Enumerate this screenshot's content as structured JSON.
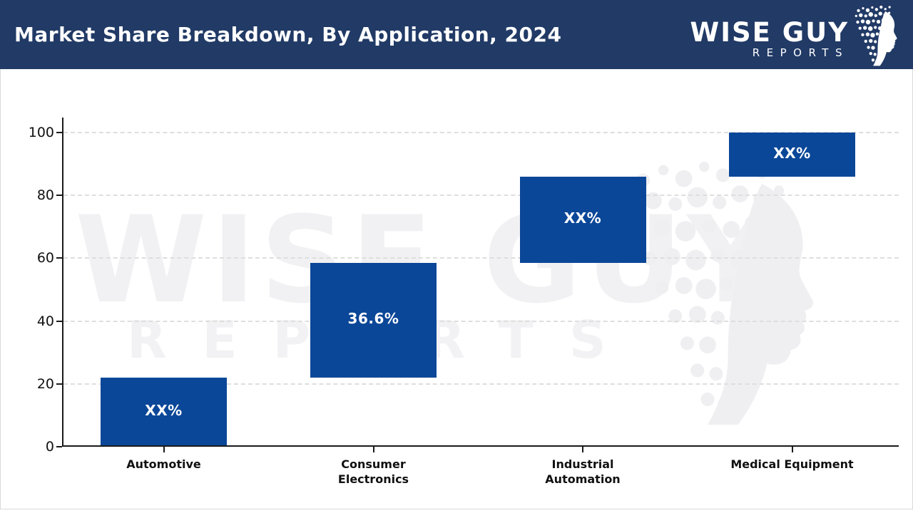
{
  "header": {
    "title": "Market Share Breakdown, By Application, 2024",
    "background_color": "#213A66",
    "logo": {
      "line1": "WISE GUY",
      "line2": "REPORTS"
    }
  },
  "watermark": {
    "line1": "WISE GUY",
    "line2": "REPORTS"
  },
  "chart_data": {
    "type": "bar",
    "subtype": "floating-waterfall",
    "title": "Market Share Breakdown, By Application, 2024",
    "categories": [
      "Automotive",
      "Consumer Electronics",
      "Industrial Automation",
      "Medical Equipment"
    ],
    "series": [
      {
        "name": "Market share (%)",
        "segments": [
          {
            "category": "Automotive",
            "start": 0,
            "end": 22,
            "label": "XX%"
          },
          {
            "category": "Consumer Electronics",
            "start": 22,
            "end": 58.6,
            "label": "36.6%"
          },
          {
            "category": "Industrial Automation",
            "start": 58.6,
            "end": 86,
            "label": "XX%"
          },
          {
            "category": "Medical Equipment",
            "start": 86,
            "end": 100,
            "label": "XX%"
          }
        ]
      }
    ],
    "xlabel": "",
    "ylabel": "",
    "ylim": [
      0,
      100
    ],
    "yticks": [
      0,
      20,
      40,
      60,
      80,
      100
    ],
    "grid": "horizontal-dashed",
    "legend": "none",
    "bar_color": "#0B4798",
    "bar_label_color": "#FFFFFF",
    "axis_color": "#1a1a1a",
    "gridline_color": "#dedede"
  }
}
